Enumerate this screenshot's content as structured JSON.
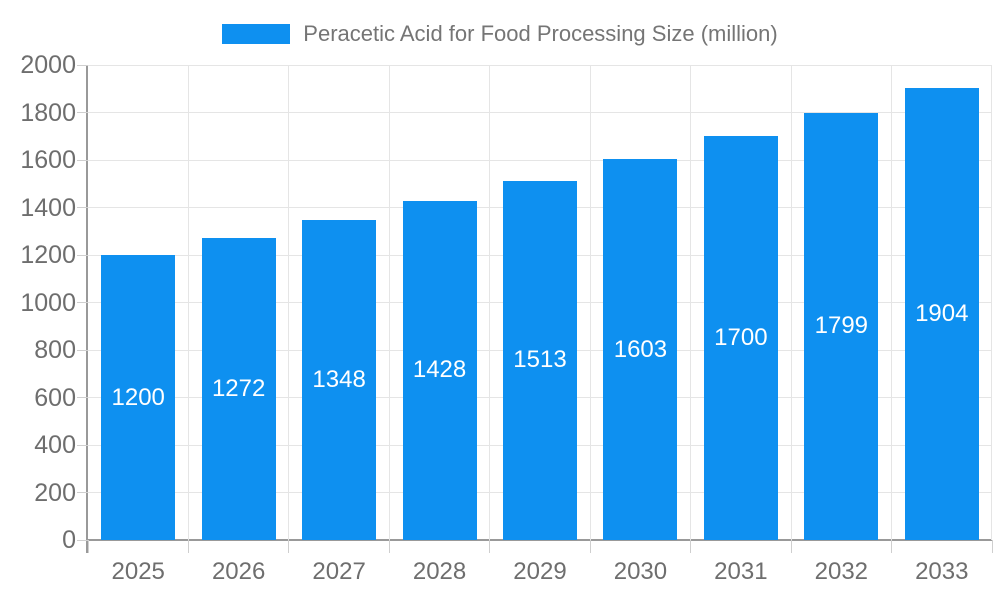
{
  "chart_data": {
    "type": "bar",
    "title": "Peracetic Acid for Food Processing Size (million)",
    "legend_entries": [
      "Peracetic Acid for Food Processing Size (million)"
    ],
    "legend_position": "top",
    "categories": [
      "2025",
      "2026",
      "2027",
      "2028",
      "2029",
      "2030",
      "2031",
      "2032",
      "2033"
    ],
    "values": [
      1200,
      1272,
      1348,
      1428,
      1513,
      1603,
      1700,
      1799,
      1904
    ],
    "xlabel": "",
    "ylabel": "",
    "ylim": [
      0,
      2000
    ],
    "yticks": [
      0,
      200,
      400,
      600,
      800,
      1000,
      1200,
      1400,
      1600,
      1800,
      2000
    ],
    "grid": true,
    "bar_value_labels": "inside-middle"
  },
  "colors": {
    "bar": "#0e90f0",
    "bar_label": "#ffffff",
    "grid": "#e5e5e5",
    "axis": "#999999",
    "tick": "#cfcfcf",
    "axis_label": "#6e6e6e",
    "title": "#757575",
    "background": "#ffffff"
  }
}
